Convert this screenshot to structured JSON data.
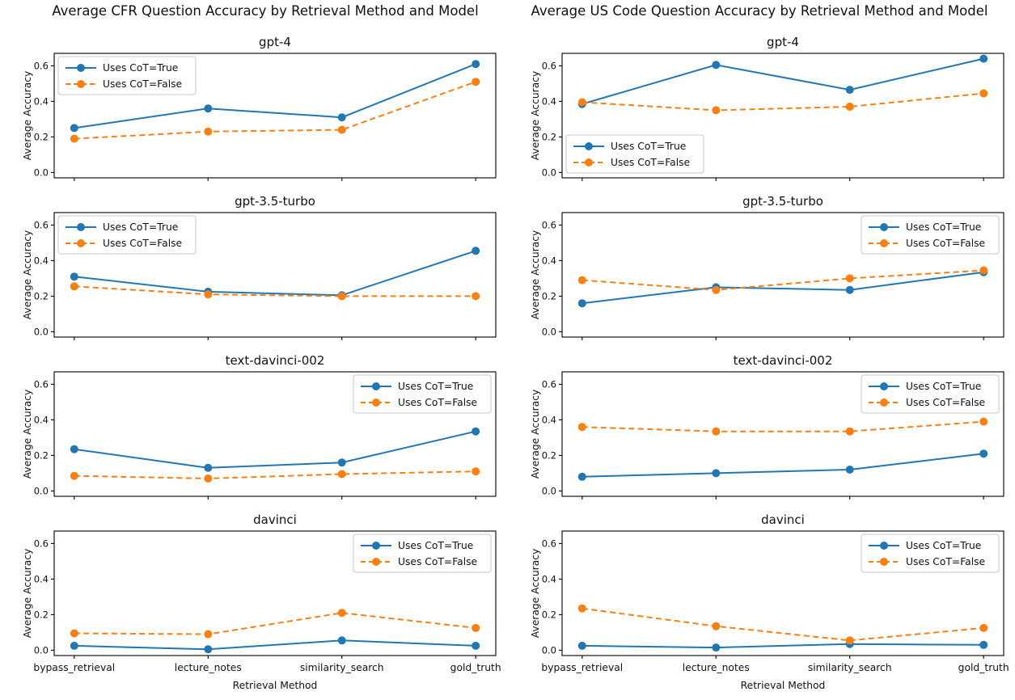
{
  "columns": [
    {
      "title": "Average CFR Question Accuracy by Retrieval Method and Model"
    },
    {
      "title": "Average US Code Question Accuracy by Retrieval Method and Model"
    }
  ],
  "colors": {
    "cot_true": "#1f77b4",
    "cot_false": "#ff7f0e",
    "axes": "#000000",
    "legend_border": "#c8c8c8"
  },
  "chart_data": [
    {
      "type": "line",
      "figure": "CFR",
      "title": "gpt-4",
      "categories": [
        "bypass_retrieval",
        "lecture_notes",
        "similarity_search",
        "gold_truth"
      ],
      "xlabel": "",
      "ylabel": "Average Accuracy",
      "yticks": [
        "0.0",
        "0.2",
        "0.4",
        "0.6"
      ],
      "ylim": [
        -0.03,
        0.67
      ],
      "grid": false,
      "legend_position": "upper left",
      "series": [
        {
          "name": "Uses CoT=True",
          "color": "#1f77b4",
          "linestyle": "solid",
          "marker": "circle",
          "values": [
            0.25,
            0.36,
            0.31,
            0.61
          ]
        },
        {
          "name": "Uses CoT=False",
          "color": "#ff7f0e",
          "linestyle": "dashed",
          "marker": "circle",
          "values": [
            0.19,
            0.23,
            0.24,
            0.51
          ]
        }
      ]
    },
    {
      "type": "line",
      "figure": "CFR",
      "title": "gpt-3.5-turbo",
      "categories": [
        "bypass_retrieval",
        "lecture_notes",
        "similarity_search",
        "gold_truth"
      ],
      "xlabel": "",
      "ylabel": "Average Accuracy",
      "yticks": [
        "0.0",
        "0.2",
        "0.4",
        "0.6"
      ],
      "ylim": [
        -0.03,
        0.67
      ],
      "grid": false,
      "legend_position": "upper left",
      "series": [
        {
          "name": "Uses CoT=True",
          "color": "#1f77b4",
          "linestyle": "solid",
          "marker": "circle",
          "values": [
            0.31,
            0.225,
            0.205,
            0.455
          ]
        },
        {
          "name": "Uses CoT=False",
          "color": "#ff7f0e",
          "linestyle": "dashed",
          "marker": "circle",
          "values": [
            0.255,
            0.21,
            0.2,
            0.2
          ]
        }
      ]
    },
    {
      "type": "line",
      "figure": "CFR",
      "title": "text-davinci-002",
      "categories": [
        "bypass_retrieval",
        "lecture_notes",
        "similarity_search",
        "gold_truth"
      ],
      "xlabel": "",
      "ylabel": "Average Accuracy",
      "yticks": [
        "0.0",
        "0.2",
        "0.4",
        "0.6"
      ],
      "ylim": [
        -0.03,
        0.67
      ],
      "grid": false,
      "legend_position": "upper right",
      "series": [
        {
          "name": "Uses CoT=True",
          "color": "#1f77b4",
          "linestyle": "solid",
          "marker": "circle",
          "values": [
            0.235,
            0.13,
            0.16,
            0.335
          ]
        },
        {
          "name": "Uses CoT=False",
          "color": "#ff7f0e",
          "linestyle": "dashed",
          "marker": "circle",
          "values": [
            0.085,
            0.07,
            0.095,
            0.11
          ]
        }
      ]
    },
    {
      "type": "line",
      "figure": "CFR",
      "title": "davinci",
      "categories": [
        "bypass_retrieval",
        "lecture_notes",
        "similarity_search",
        "gold_truth"
      ],
      "xlabel": "Retrieval Method",
      "ylabel": "Average Accuracy",
      "yticks": [
        "0.0",
        "0.2",
        "0.4",
        "0.6"
      ],
      "ylim": [
        -0.03,
        0.67
      ],
      "grid": false,
      "legend_position": "upper right",
      "series": [
        {
          "name": "Uses CoT=True",
          "color": "#1f77b4",
          "linestyle": "solid",
          "marker": "circle",
          "values": [
            0.025,
            0.005,
            0.055,
            0.025
          ]
        },
        {
          "name": "Uses CoT=False",
          "color": "#ff7f0e",
          "linestyle": "dashed",
          "marker": "circle",
          "values": [
            0.095,
            0.09,
            0.21,
            0.125
          ]
        }
      ]
    },
    {
      "type": "line",
      "figure": "US Code",
      "title": "gpt-4",
      "categories": [
        "bypass_retrieval",
        "lecture_notes",
        "similarity_search",
        "gold_truth"
      ],
      "xlabel": "",
      "ylabel": "Average Accuracy",
      "yticks": [
        "0.0",
        "0.2",
        "0.4",
        "0.6"
      ],
      "ylim": [
        -0.03,
        0.67
      ],
      "grid": false,
      "legend_position": "lower left",
      "series": [
        {
          "name": "Uses CoT=True",
          "color": "#1f77b4",
          "linestyle": "solid",
          "marker": "circle",
          "values": [
            0.385,
            0.605,
            0.465,
            0.64
          ]
        },
        {
          "name": "Uses CoT=False",
          "color": "#ff7f0e",
          "linestyle": "dashed",
          "marker": "circle",
          "values": [
            0.395,
            0.35,
            0.37,
            0.445
          ]
        }
      ]
    },
    {
      "type": "line",
      "figure": "US Code",
      "title": "gpt-3.5-turbo",
      "categories": [
        "bypass_retrieval",
        "lecture_notes",
        "similarity_search",
        "gold_truth"
      ],
      "xlabel": "",
      "ylabel": "Average Accuracy",
      "yticks": [
        "0.0",
        "0.2",
        "0.4",
        "0.6"
      ],
      "ylim": [
        -0.03,
        0.67
      ],
      "grid": false,
      "legend_position": "upper right",
      "series": [
        {
          "name": "Uses CoT=True",
          "color": "#1f77b4",
          "linestyle": "solid",
          "marker": "circle",
          "values": [
            0.16,
            0.25,
            0.235,
            0.335
          ]
        },
        {
          "name": "Uses CoT=False",
          "color": "#ff7f0e",
          "linestyle": "dashed",
          "marker": "circle",
          "values": [
            0.29,
            0.235,
            0.3,
            0.345
          ]
        }
      ]
    },
    {
      "type": "line",
      "figure": "US Code",
      "title": "text-davinci-002",
      "categories": [
        "bypass_retrieval",
        "lecture_notes",
        "similarity_search",
        "gold_truth"
      ],
      "xlabel": "",
      "ylabel": "Average Accuracy",
      "yticks": [
        "0.0",
        "0.2",
        "0.4",
        "0.6"
      ],
      "ylim": [
        -0.03,
        0.67
      ],
      "grid": false,
      "legend_position": "upper right",
      "series": [
        {
          "name": "Uses CoT=True",
          "color": "#1f77b4",
          "linestyle": "solid",
          "marker": "circle",
          "values": [
            0.08,
            0.1,
            0.12,
            0.21
          ]
        },
        {
          "name": "Uses CoT=False",
          "color": "#ff7f0e",
          "linestyle": "dashed",
          "marker": "circle",
          "values": [
            0.36,
            0.335,
            0.335,
            0.39
          ]
        }
      ]
    },
    {
      "type": "line",
      "figure": "US Code",
      "title": "davinci",
      "categories": [
        "bypass_retrieval",
        "lecture_notes",
        "similarity_search",
        "gold_truth"
      ],
      "xlabel": "Retrieval Method",
      "ylabel": "Average Accuracy",
      "yticks": [
        "0.0",
        "0.2",
        "0.4",
        "0.6"
      ],
      "ylim": [
        -0.03,
        0.67
      ],
      "grid": false,
      "legend_position": "upper right",
      "series": [
        {
          "name": "Uses CoT=True",
          "color": "#1f77b4",
          "linestyle": "solid",
          "marker": "circle",
          "values": [
            0.025,
            0.015,
            0.035,
            0.03
          ]
        },
        {
          "name": "Uses CoT=False",
          "color": "#ff7f0e",
          "linestyle": "dashed",
          "marker": "circle",
          "values": [
            0.235,
            0.135,
            0.055,
            0.125
          ]
        }
      ]
    }
  ]
}
